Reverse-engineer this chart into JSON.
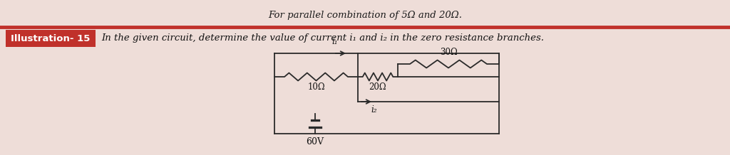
{
  "background_color": "#eeddd8",
  "header_text": "For parallel combination of 5Ω and 20Ω.",
  "banner_color": "#c0312b",
  "banner_text": "Illustration- 15",
  "banner_text_color": "#ffffff",
  "problem_text": "In the given circuit, determine the value of current i₁ and i₂ in the zero resistance branches.",
  "circuit": {
    "R1_label": "10Ω",
    "R2_label": "20Ω",
    "R3_label": "30Ω",
    "V_label": "60V",
    "i1_label": "i₁",
    "i2_label": "i₂",
    "line_color": "#2a2a2a"
  },
  "red_line_color": "#c0312b",
  "title_fontsize": 9.5,
  "problem_fontsize": 9.5,
  "banner_fontsize": 9.5,
  "circuit_label_fontsize": 8.5
}
